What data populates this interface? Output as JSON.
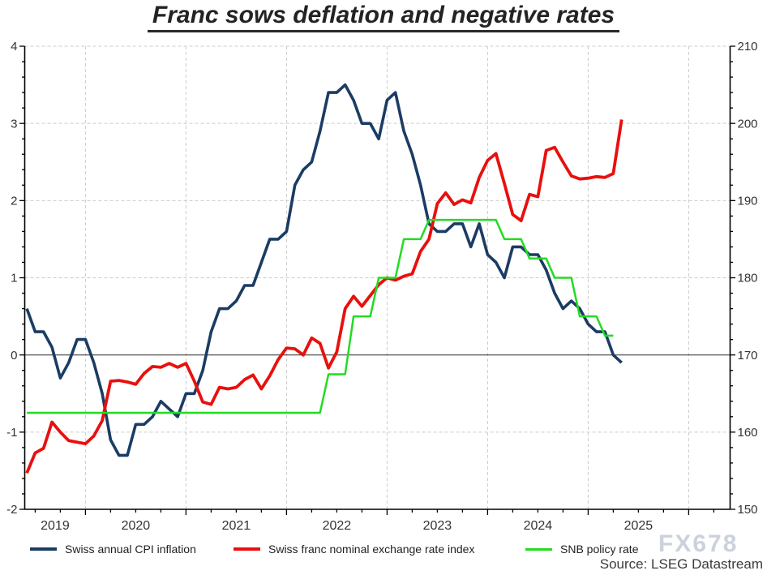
{
  "title": "Franc sows deflation and negative rates",
  "watermark": "FX678",
  "source": "Source: LSEG Datastream",
  "colors": {
    "cpi_line": "#1b3c63",
    "franc_line": "#e8100e",
    "policy_line": "#21dc21",
    "gridline": "#cbcbcb",
    "zero_line": "#3f3f3f",
    "axis": "#000000",
    "tick_label": "#333333",
    "title_text": "#232323",
    "watermark_text": "#ccd2dd",
    "source_text": "#3b3b3b"
  },
  "chart_data": {
    "type": "line",
    "title": "Franc sows deflation and negative rates",
    "frequency": "monthly",
    "x_start_month": "2019-06",
    "x_end_month": "2025-05",
    "x_axis_end_month": "2026-05",
    "grid": "dashed horizontal at each integer of left axis and vertical at each January; solid horizontal line at left-axis 0 / right-axis 170",
    "legend_position": "bottom",
    "x_axis": {
      "year_labels": [
        "2019",
        "2020",
        "2021",
        "2022",
        "2023",
        "2024",
        "2025"
      ]
    },
    "left_axis": {
      "range": [
        -2,
        4
      ],
      "ticks": [
        -2,
        -1,
        0,
        1,
        2,
        3,
        4
      ],
      "tick_labels": [
        "-2",
        "-1",
        "0",
        "1",
        "2",
        "3",
        "4"
      ],
      "minor_step": 0.2
    },
    "right_axis": {
      "range": [
        150,
        210
      ],
      "ticks": [
        150,
        160,
        170,
        180,
        190,
        200,
        210
      ],
      "tick_labels": [
        "150",
        "160",
        "170",
        "180",
        "190",
        "200",
        "210"
      ],
      "minor_step": 2
    },
    "series": [
      {
        "id": "cpi",
        "name": "Swiss annual CPI inflation",
        "color": "#1b3c63",
        "axis": "left",
        "width": 3.6,
        "values": [
          0.6,
          0.3,
          0.3,
          0.1,
          -0.3,
          -0.1,
          0.2,
          0.2,
          -0.1,
          -0.5,
          -1.1,
          -1.3,
          -1.3,
          -0.9,
          -0.9,
          -0.8,
          -0.6,
          -0.7,
          -0.8,
          -0.5,
          -0.5,
          -0.2,
          0.3,
          0.6,
          0.6,
          0.7,
          0.9,
          0.9,
          1.2,
          1.5,
          1.5,
          1.6,
          2.2,
          2.4,
          2.5,
          2.9,
          3.4,
          3.4,
          3.5,
          3.3,
          3.0,
          3.0,
          2.8,
          3.3,
          3.4,
          2.9,
          2.6,
          2.2,
          1.7,
          1.6,
          1.6,
          1.7,
          1.7,
          1.4,
          1.7,
          1.3,
          1.2,
          1.0,
          1.4,
          1.4,
          1.3,
          1.3,
          1.1,
          0.8,
          0.6,
          0.7,
          0.6,
          0.4,
          0.3,
          0.3,
          0.0,
          -0.1
        ]
      },
      {
        "id": "franc_index",
        "name": "Swiss franc nominal exchange rate index",
        "color": "#e8100e",
        "axis": "right",
        "width": 3.8,
        "values": [
          154.7,
          157.3,
          157.9,
          161.3,
          160.0,
          158.9,
          158.7,
          158.5,
          159.5,
          161.5,
          166.6,
          166.7,
          166.5,
          166.2,
          167.6,
          168.5,
          168.4,
          168.9,
          168.4,
          168.9,
          166.6,
          163.9,
          163.6,
          165.8,
          165.6,
          165.8,
          166.8,
          167.4,
          165.6,
          167.3,
          169.4,
          170.9,
          170.8,
          170.0,
          172.2,
          171.5,
          168.3,
          170.4,
          176.0,
          177.6,
          176.3,
          177.7,
          179.1,
          180.0,
          179.7,
          180.2,
          180.5,
          183.4,
          185.0,
          189.6,
          191.0,
          189.5,
          190.1,
          189.7,
          193.0,
          195.2,
          196.1,
          192.2,
          188.2,
          187.4,
          190.8,
          190.5,
          196.5,
          196.9,
          195.0,
          193.2,
          192.8,
          192.9,
          193.1,
          193.0,
          193.5,
          200.5
        ]
      },
      {
        "id": "snb_policy_rate",
        "name": "SNB policy rate",
        "color": "#21dc21",
        "axis": "left",
        "width": 2.5,
        "values": [
          -0.75,
          -0.75,
          -0.75,
          -0.75,
          -0.75,
          -0.75,
          -0.75,
          -0.75,
          -0.75,
          -0.75,
          -0.75,
          -0.75,
          -0.75,
          -0.75,
          -0.75,
          -0.75,
          -0.75,
          -0.75,
          -0.75,
          -0.75,
          -0.75,
          -0.75,
          -0.75,
          -0.75,
          -0.75,
          -0.75,
          -0.75,
          -0.75,
          -0.75,
          -0.75,
          -0.75,
          -0.75,
          -0.75,
          -0.75,
          -0.75,
          -0.75,
          -0.25,
          -0.25,
          -0.25,
          0.5,
          0.5,
          0.5,
          1.0,
          1.0,
          1.0,
          1.5,
          1.5,
          1.5,
          1.75,
          1.75,
          1.75,
          1.75,
          1.75,
          1.75,
          1.75,
          1.75,
          1.75,
          1.5,
          1.5,
          1.5,
          1.25,
          1.25,
          1.25,
          1.0,
          1.0,
          1.0,
          0.5,
          0.5,
          0.5,
          0.25,
          0.25,
          null
        ]
      }
    ]
  }
}
